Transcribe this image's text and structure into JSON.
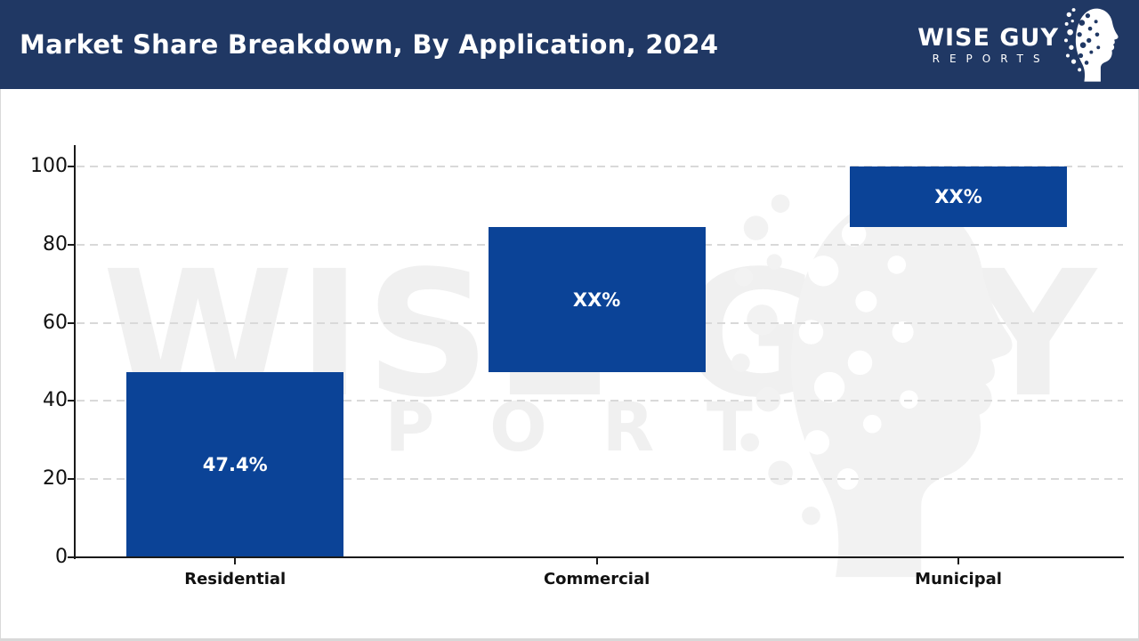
{
  "header": {
    "title": "Market Share Breakdown, By Application, 2024",
    "bg_color": "#203864",
    "logo": {
      "line1": "WISE GUY",
      "line2": "REPORTS"
    }
  },
  "watermark": {
    "line1": "WISE GUY",
    "line2": "REPORTS"
  },
  "chart_data": {
    "type": "bar",
    "subtype": "waterfall",
    "title": "Market Share Breakdown, By Application, 2024",
    "categories": [
      "Residential",
      "Commercial",
      "Municipal"
    ],
    "series": [
      {
        "name": "Market share by application (%)",
        "segments": [
          {
            "category": "Residential",
            "start": 0,
            "end": 47.4,
            "label": "47.4%"
          },
          {
            "category": "Commercial",
            "start": 47.4,
            "end": 84.5,
            "label": "XX%"
          },
          {
            "category": "Municipal",
            "start": 84.5,
            "end": 100,
            "label": "XX%"
          }
        ]
      }
    ],
    "xlabel": "",
    "ylabel": "",
    "ylim": [
      0,
      105.5
    ],
    "yticks": [
      0,
      20,
      40,
      60,
      80,
      100
    ],
    "grid": "horizontal-dashed",
    "legend": "none",
    "bar_color": "#0b4397",
    "bar_label_color": "#ffffff",
    "axis_color": "#1a1a1a",
    "grid_color": "#d9d9d9"
  }
}
